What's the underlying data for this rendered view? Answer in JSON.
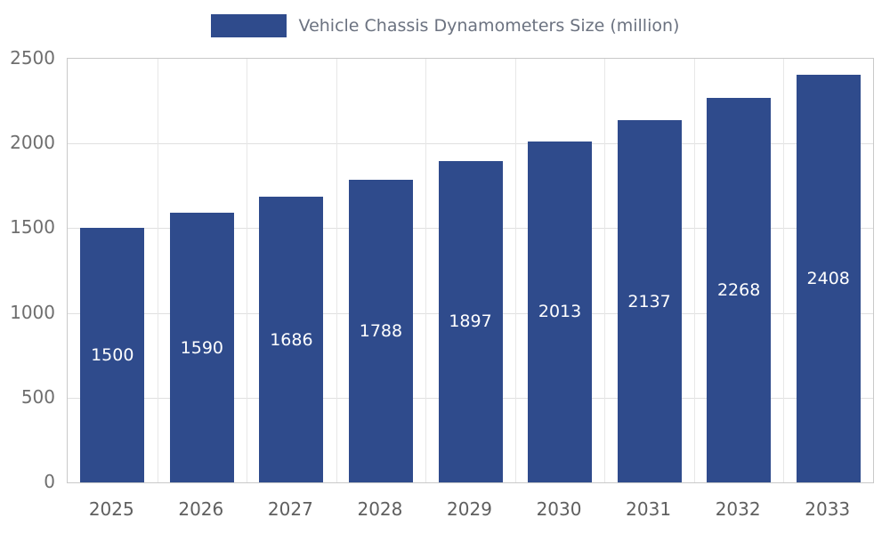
{
  "legend": {
    "label": "Vehicle Chassis Dynamometers Size (million)"
  },
  "colors": {
    "bar": "#2f4b8c",
    "value_label": "#ffffff",
    "grid": "#e0e0e0",
    "axis_text": "#6e6e6e"
  },
  "chart_data": {
    "type": "bar",
    "title": "Vehicle Chassis Dynamometers Size (million)",
    "categories": [
      "2025",
      "2026",
      "2027",
      "2028",
      "2029",
      "2030",
      "2031",
      "2032",
      "2033"
    ],
    "values": [
      1500,
      1590,
      1686,
      1788,
      1897,
      2013,
      2137,
      2268,
      2408
    ],
    "xlabel": "",
    "ylabel": "",
    "ylim": [
      0,
      2500
    ],
    "yticks": [
      0,
      500,
      1000,
      1500,
      2000,
      2500
    ],
    "grid": true,
    "legend_position": "top",
    "value_labels": "inside-center"
  }
}
